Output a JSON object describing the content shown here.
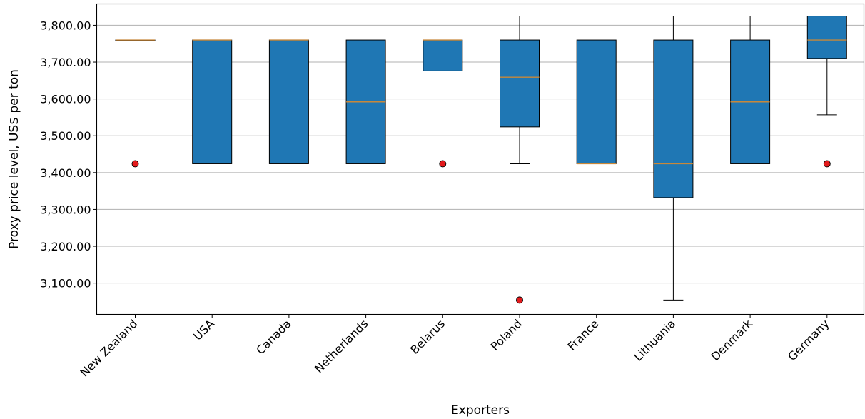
{
  "chart_data": {
    "type": "boxplot",
    "xlabel": "Exporters",
    "ylabel": "Proxy price level, US$ per ton",
    "ylim": [
      3015,
      3858
    ],
    "yticks": [
      3100,
      3200,
      3300,
      3400,
      3500,
      3600,
      3700,
      3800
    ],
    "ytick_labels": [
      "3,100.00",
      "3,200.00",
      "3,300.00",
      "3,400.00",
      "3,500.00",
      "3,600.00",
      "3,700.00",
      "3,800.00"
    ],
    "grid": "horizontal",
    "colors": {
      "box_fill": "#1f77b4",
      "median": "#c8883a",
      "outlier": "#e31a1c",
      "grid": "#b0b0b0"
    },
    "categories": [
      "New Zealand",
      "USA",
      "Canada",
      "Netherlands",
      "Belarus",
      "Poland",
      "France",
      "Lithuania",
      "Denmark",
      "Germany"
    ],
    "boxes": [
      {
        "q1": 3760,
        "median": 3760,
        "q3": 3760,
        "whislo": 3760,
        "whishi": 3760,
        "outliers": [
          3424
        ]
      },
      {
        "q1": 3424,
        "median": 3760,
        "q3": 3760,
        "whislo": 3424,
        "whishi": 3760,
        "outliers": []
      },
      {
        "q1": 3424,
        "median": 3760,
        "q3": 3760,
        "whislo": 3424,
        "whishi": 3760,
        "outliers": []
      },
      {
        "q1": 3424,
        "median": 3592,
        "q3": 3760,
        "whislo": 3424,
        "whishi": 3760,
        "outliers": []
      },
      {
        "q1": 3676,
        "median": 3760,
        "q3": 3760,
        "whislo": 3676,
        "whishi": 3760,
        "outliers": [
          3424
        ]
      },
      {
        "q1": 3524,
        "median": 3659,
        "q3": 3760,
        "whislo": 3424,
        "whishi": 3825,
        "outliers": [
          3054
        ]
      },
      {
        "q1": 3424,
        "median": 3424,
        "q3": 3760,
        "whislo": 3424,
        "whishi": 3760,
        "outliers": []
      },
      {
        "q1": 3332,
        "median": 3424,
        "q3": 3760,
        "whislo": 3054,
        "whishi": 3825,
        "outliers": []
      },
      {
        "q1": 3424,
        "median": 3592,
        "q3": 3760,
        "whislo": 3424,
        "whishi": 3825,
        "outliers": []
      },
      {
        "q1": 3710,
        "median": 3760,
        "q3": 3825,
        "whislo": 3557,
        "whishi": 3825,
        "outliers": [
          3424
        ]
      }
    ]
  }
}
